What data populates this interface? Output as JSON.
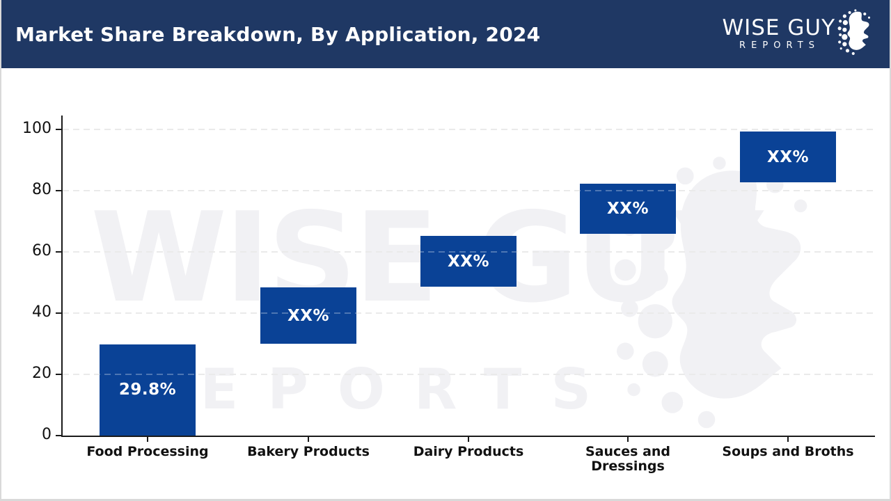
{
  "header": {
    "title": "Market Share Breakdown, By Application, 2024",
    "logo": {
      "line1": "WISE GUY",
      "line2": "REPORTS"
    }
  },
  "watermark": {
    "line1": "WISE GUY",
    "line2": "REPORTS"
  },
  "colors": {
    "header_bg": "#1f3864",
    "bar_blue": "#0a4296",
    "watermark_gray": "#f1f1f4",
    "gridline_gray": "#e2e2e2",
    "axis_black": "#1a1a1a"
  },
  "chart_data": {
    "type": "bar",
    "subtype": "waterfall",
    "title": "Market Share Breakdown, By Application, 2024",
    "xlabel": "",
    "ylabel": "",
    "ylim": [
      0,
      104.5
    ],
    "yticks": [
      0,
      20,
      40,
      60,
      80,
      100
    ],
    "grid": "horizontal-dashed",
    "legend": "none",
    "categories": [
      "Food Processing",
      "Bakery Products",
      "Dairy Products",
      "Sauces and Dressings",
      "Soups and Broths"
    ],
    "segments": [
      {
        "category": "Food Processing",
        "category_lines": [
          "Food Processing"
        ],
        "start": 0,
        "end": 29.8,
        "value_label": "29.8%"
      },
      {
        "category": "Bakery Products",
        "category_lines": [
          "Bakery Products"
        ],
        "start": 29.9,
        "end": 48.3,
        "value_label": "XX%"
      },
      {
        "category": "Dairy Products",
        "category_lines": [
          "Dairy Products"
        ],
        "start": 48.6,
        "end": 65.2,
        "value_label": "XX%"
      },
      {
        "category": "Sauces and Dressings",
        "category_lines": [
          "Sauces and",
          "Dressings"
        ],
        "start": 65.9,
        "end": 82.3,
        "value_label": "XX%"
      },
      {
        "category": "Soups and Broths",
        "category_lines": [
          "Soups and Broths"
        ],
        "start": 82.7,
        "end": 99.3,
        "value_label": "XX%"
      }
    ]
  }
}
